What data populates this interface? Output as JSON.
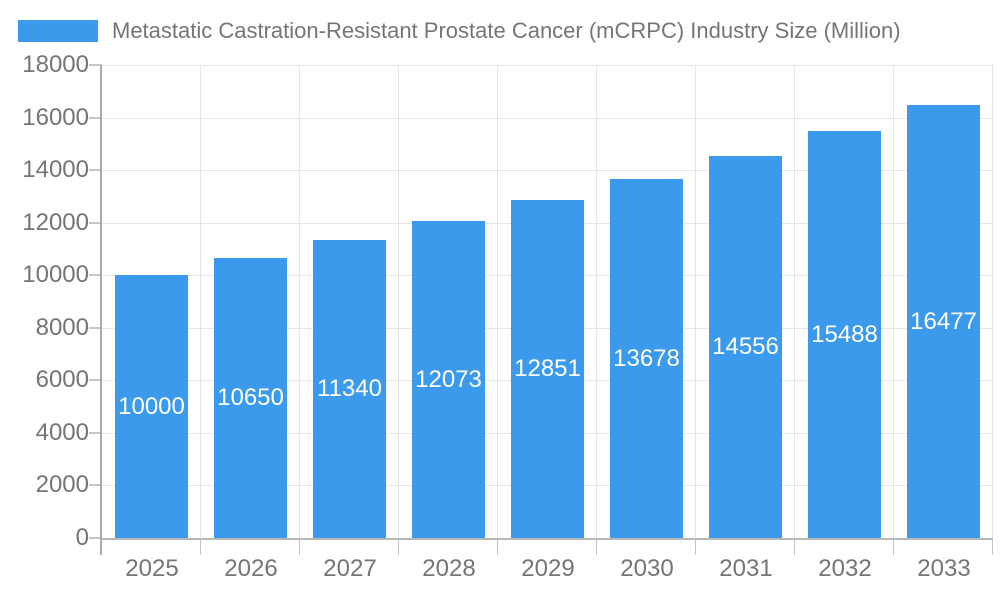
{
  "legend": {
    "label": "Metastatic Castration-Resistant Prostate Cancer (mCRPC) Industry Size (Million)"
  },
  "chart_data": {
    "type": "bar",
    "title": "Metastatic Castration-Resistant Prostate Cancer (mCRPC) Industry Size (Million)",
    "categories": [
      "2025",
      "2026",
      "2027",
      "2028",
      "2029",
      "2030",
      "2031",
      "2032",
      "2033"
    ],
    "values": [
      10000,
      10650,
      11340,
      12073,
      12851,
      13678,
      14556,
      15488,
      16477
    ],
    "series": [
      {
        "name": "Metastatic Castration-Resistant Prostate Cancer (mCRPC) Industry Size (Million)",
        "values": [
          10000,
          10650,
          11340,
          12073,
          12851,
          13678,
          14556,
          15488,
          16477
        ]
      }
    ],
    "xlabel": "",
    "ylabel": "",
    "ylim": [
      0,
      18000
    ],
    "ytick_step": 2000,
    "ytick_labels": [
      "0",
      "2000",
      "4000",
      "6000",
      "8000",
      "10000",
      "12000",
      "14000",
      "16000",
      "18000"
    ],
    "grid": true,
    "legend_position": "top-left",
    "bar_value_labels": "inside-center"
  },
  "colors": {
    "bar": "#3B9AEC",
    "bar_label_text": "#FFFFFF",
    "axis_text": "#757575",
    "title_text": "#757575",
    "gridline": "#E6E6E6",
    "axis_line": "#A9A9A9",
    "baseline": "#B8B8B8",
    "tick": "#C6C6C6",
    "background": "#FFFFFF"
  }
}
